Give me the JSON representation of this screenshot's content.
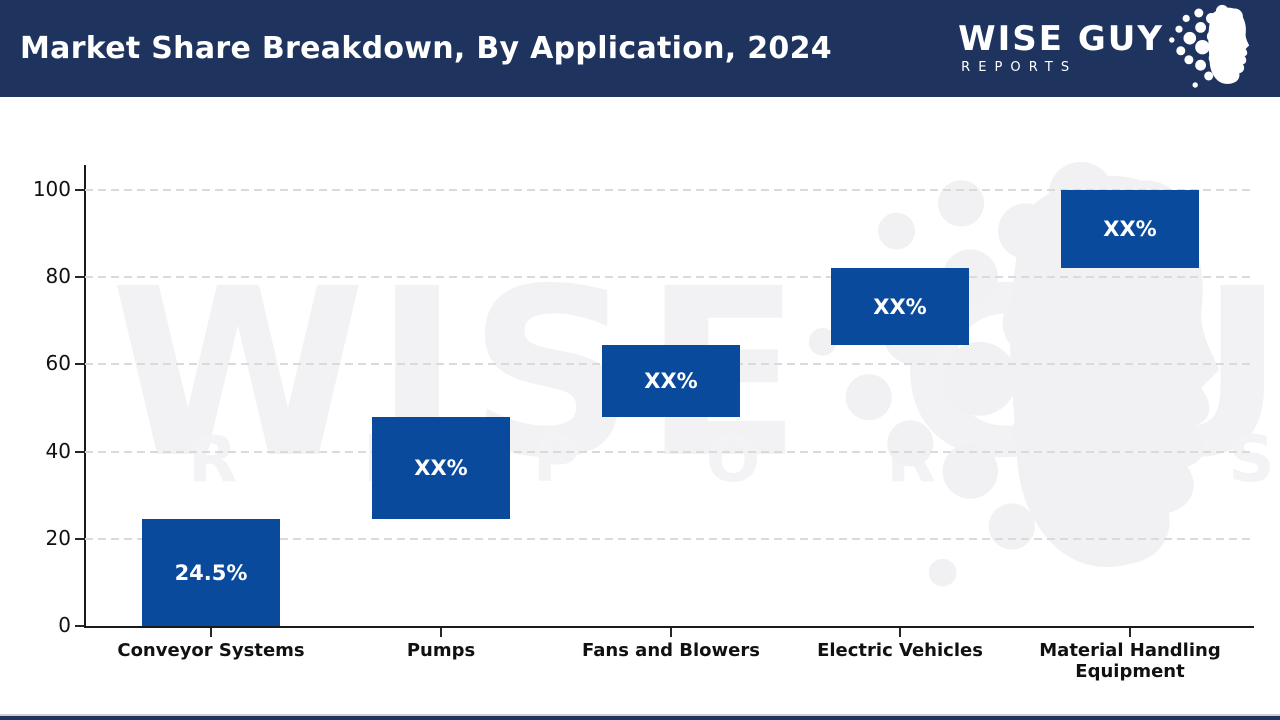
{
  "header": {
    "title": "Market Share Breakdown, By Application, 2024",
    "logo": {
      "line1": "WISE GUY",
      "line2": "REPORTS"
    }
  },
  "watermark": {
    "line1": "WISE GUY",
    "line2": "REPORTS"
  },
  "colors": {
    "header_bg": "#1e345e",
    "bar_blue": "#0a4a9d",
    "bar_label_text": "#ffffff",
    "grid_gray": "#dadada",
    "axis_black": "#1a1a1a",
    "watermark_gray": "#f2f2f4",
    "footer_bg": "#1e345e",
    "footer_line": "#cfcfcf"
  },
  "chart_data": {
    "type": "bar",
    "subtype": "waterfall",
    "title": "Market Share Breakdown, By Application, 2024",
    "xlabel": "",
    "ylabel": "",
    "ylim": [
      0,
      106
    ],
    "yticks": [
      0,
      20,
      40,
      60,
      80,
      100
    ],
    "grid": "horizontal-dashed",
    "legend": "none",
    "categories": [
      "Conveyor Systems",
      "Pumps",
      "Fans and Blowers",
      "Electric Vehicles",
      "Material Handling Equipment"
    ],
    "bars": [
      {
        "category": "Conveyor Systems",
        "start": 0,
        "end": 24.5,
        "size": 24.5,
        "label": "24.5%"
      },
      {
        "category": "Pumps",
        "start": 24.5,
        "end": 48,
        "size": 23.5,
        "label": "XX%"
      },
      {
        "category": "Fans and Blowers",
        "start": 48,
        "end": 64.5,
        "size": 16.5,
        "label": "XX%"
      },
      {
        "category": "Electric Vehicles",
        "start": 64.5,
        "end": 82,
        "size": 17.5,
        "label": "XX%"
      },
      {
        "category": "Material Handling Equipment",
        "start": 82,
        "end": 100,
        "size": 18,
        "label": "XX%"
      }
    ]
  }
}
